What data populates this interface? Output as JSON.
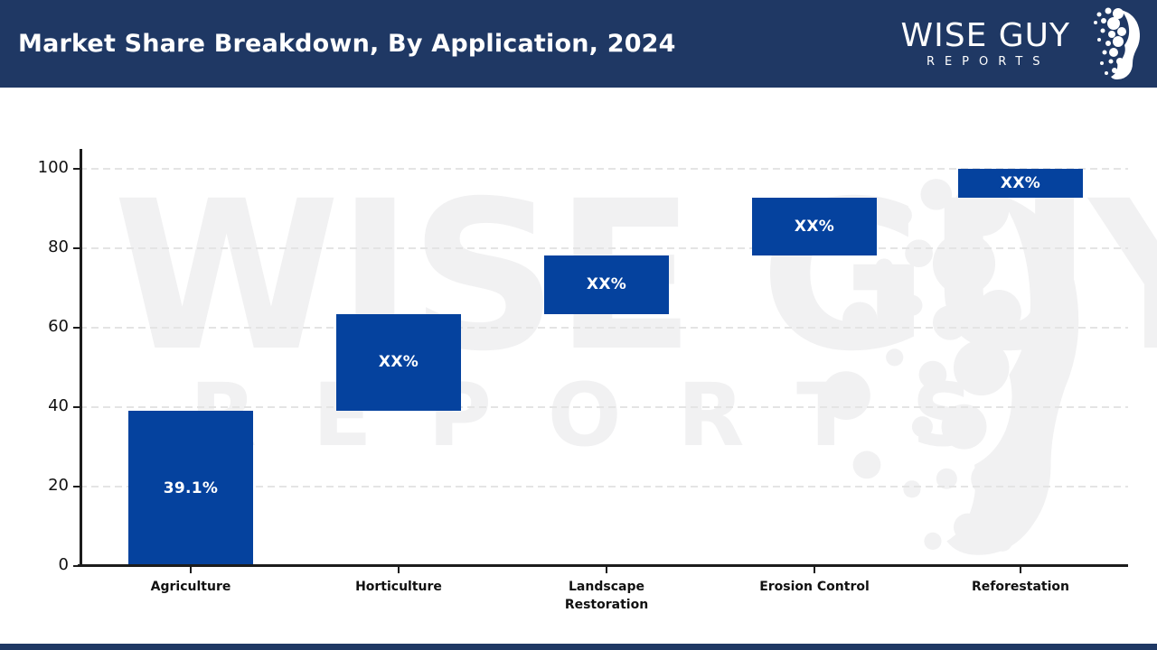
{
  "header": {
    "title": "Market Share Breakdown, By Application, 2024",
    "bg_color": "#1f3864"
  },
  "logo": {
    "line1": "WISE GUY",
    "line2": "REPORTS"
  },
  "watermark": {
    "line1": "WISE GUY",
    "line2": "REPORTS"
  },
  "chart_data": {
    "type": "bar",
    "subtype": "waterfall",
    "title": "Market Share Breakdown, By Application, 2024",
    "categories": [
      "Agriculture",
      "Horticulture",
      "Landscape Restoration",
      "Erosion Control",
      "Reforestation"
    ],
    "segments": [
      {
        "category": "Agriculture",
        "start": 0,
        "end": 39.1,
        "label": "39.1%"
      },
      {
        "category": "Horticulture",
        "start": 39.1,
        "end": 63.5,
        "label": "XX%"
      },
      {
        "category": "Landscape Restoration",
        "start": 63.5,
        "end": 78.2,
        "label": "XX%"
      },
      {
        "category": "Erosion Control",
        "start": 78.2,
        "end": 92.7,
        "label": "XX%"
      },
      {
        "category": "Reforestation",
        "start": 92.7,
        "end": 100,
        "label": "XX%"
      }
    ],
    "ylim": [
      0,
      100
    ],
    "yticks": [
      0,
      20,
      40,
      60,
      80,
      100
    ],
    "grid": "horizontal-dashed",
    "legend": "none",
    "bar_color": "#05429e",
    "bar_label_color": "#ffffff",
    "axis_color": "#1c1c1c"
  },
  "footer": {
    "bar_color": "#1f3864"
  }
}
